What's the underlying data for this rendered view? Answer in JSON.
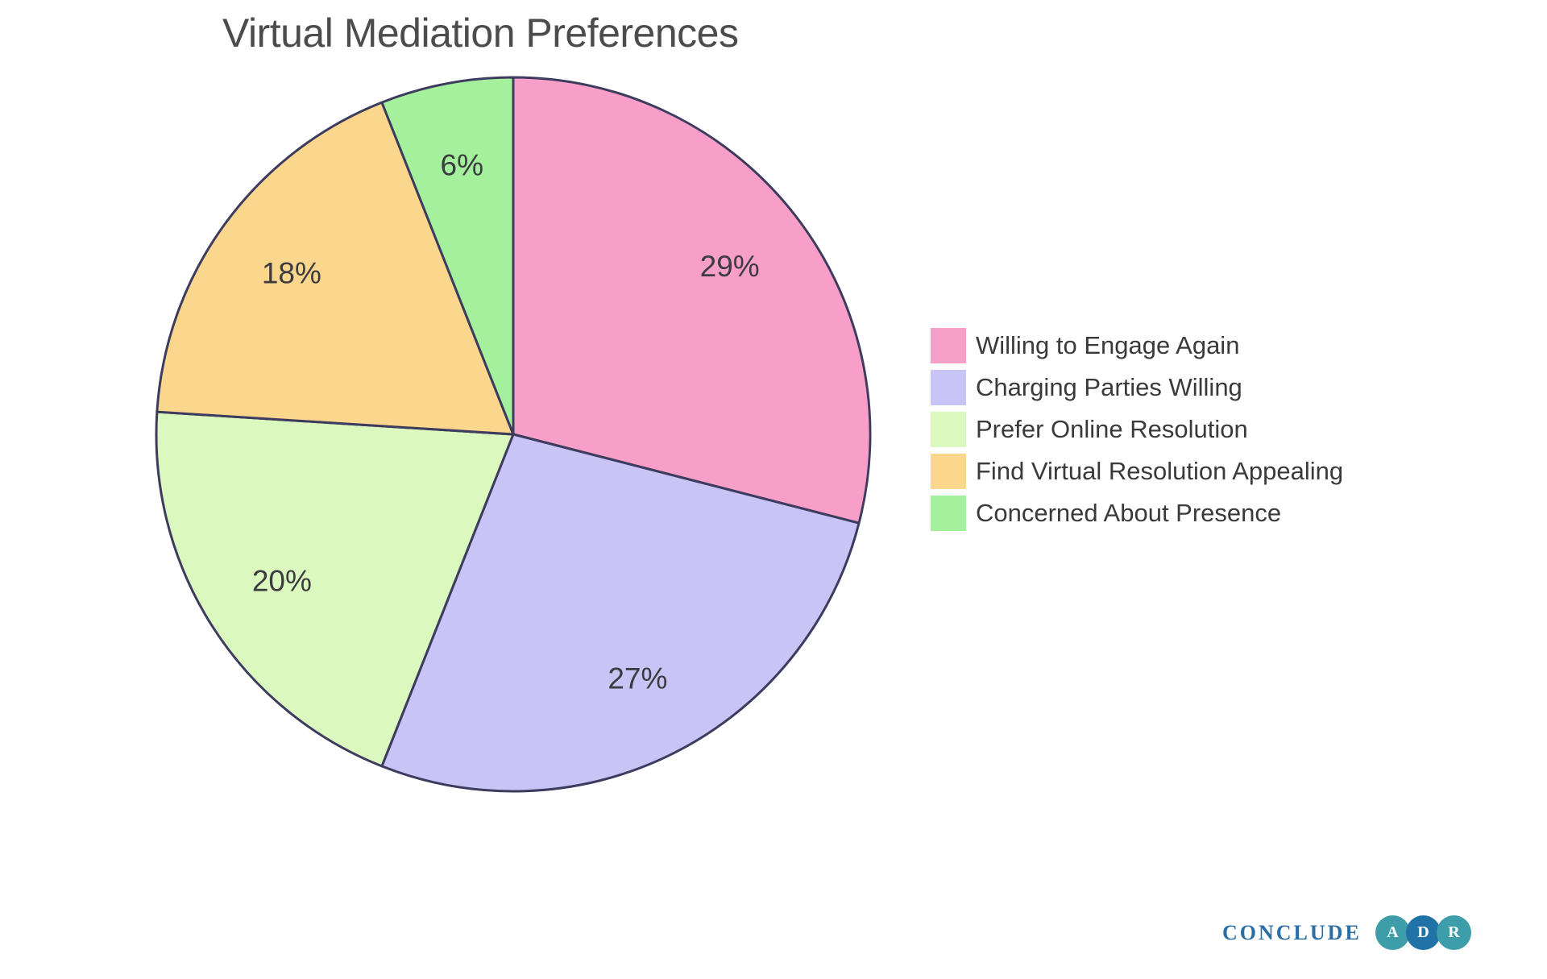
{
  "title": "Virtual Mediation Preferences",
  "chart_data": {
    "type": "pie",
    "title": "Virtual Mediation Preferences",
    "labels": [
      "Willing to Engage Again",
      "Charging Parties Willing",
      "Prefer Online Resolution",
      "Find Virtual Resolution Appealing",
      "Concerned About Presence"
    ],
    "values": [
      29,
      27,
      20,
      18,
      6
    ],
    "slice_labels": [
      "29%",
      "27%",
      "20%",
      "18%",
      "6%"
    ],
    "colors": [
      "#F89FC9",
      "#C8C5F6",
      "#DBF8BE",
      "#FBD78E",
      "#A5F09C"
    ],
    "stroke_color": "#3E3C5E",
    "start_angle": "12-oclock",
    "direction": "clockwise",
    "legend_position": "right",
    "label_color": "#3b3b40"
  },
  "logo": {
    "wordmark": "CONCLUDE",
    "wordmark_color": "#2a6ea5",
    "badges": [
      {
        "letter": "A",
        "color": "#3D9DA9"
      },
      {
        "letter": "D",
        "color": "#2173A7"
      },
      {
        "letter": "R",
        "color": "#3D9DA9"
      }
    ]
  }
}
